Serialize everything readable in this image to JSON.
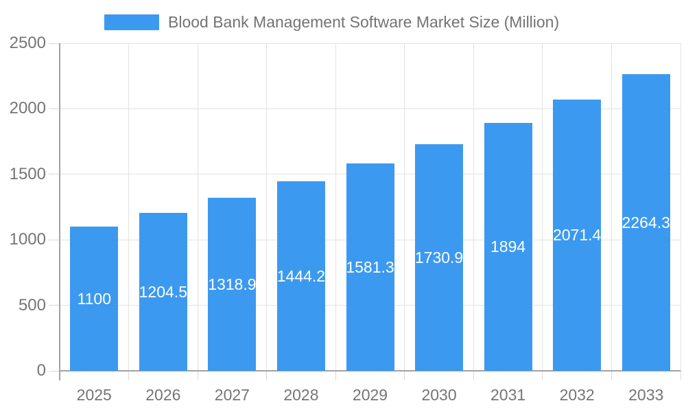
{
  "legend": {
    "label": "Blood Bank Management Software Market Size (Million)"
  },
  "chart_data": {
    "type": "bar",
    "title": "Blood Bank Management Software Market Size (Million)",
    "categories": [
      "2025",
      "2026",
      "2027",
      "2028",
      "2029",
      "2030",
      "2031",
      "2032",
      "2033"
    ],
    "values": [
      1100,
      1204.5,
      1318.9,
      1444.2,
      1581.3,
      1730.9,
      1894,
      2071.4,
      2264.3
    ],
    "value_labels": [
      "1100",
      "1204.5",
      "1318.9",
      "1444.2",
      "1581.3",
      "1730.9",
      "1894",
      "2071.4",
      "2264.3"
    ],
    "ytick_labels": [
      "0",
      "500",
      "1000",
      "1500",
      "2000",
      "2500"
    ],
    "yticks": [
      0,
      500,
      1000,
      1500,
      2000,
      2500
    ],
    "ylim": [
      0,
      2500
    ],
    "xlabel": "",
    "ylabel": "",
    "grid": true,
    "legend_position": "top",
    "colors": {
      "bar": "#3C99F0",
      "value_label": "#FFFFFF",
      "axis_line": "#A2A2A2",
      "grid_line": "#E2E2E2",
      "tick_line": "#D8D8D8",
      "tick_label": "#757575",
      "legend_text": "#737373",
      "background": "#FFFFFF"
    }
  }
}
